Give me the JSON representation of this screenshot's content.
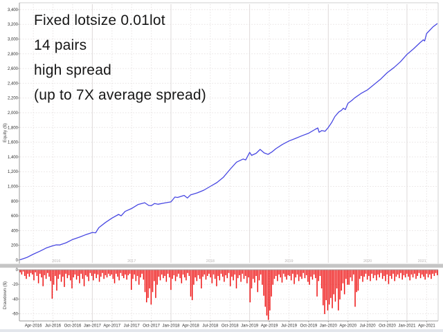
{
  "annotation": {
    "lines": [
      "Fixed lotsize 0.01lot",
      "14 pairs",
      "high spread",
      "(up to 7X average spread)"
    ]
  },
  "chart_data": {
    "type": "line",
    "title": "",
    "equity": {
      "axis_label": "Equity ($)",
      "y_tick_labels": [
        "0",
        "200",
        "400",
        "600",
        "800",
        "1,000",
        "1,200",
        "1,400",
        "1,600",
        "1,800",
        "2,000",
        "2,200",
        "2,400",
        "2,600",
        "2,800",
        "3,000",
        "3,200",
        "3,400"
      ],
      "y_tick_values": [
        0,
        200,
        400,
        600,
        800,
        1000,
        1200,
        1400,
        1600,
        1800,
        2000,
        2200,
        2400,
        2600,
        2800,
        3000,
        3200,
        3400
      ],
      "ylim": [
        0,
        3400
      ],
      "points": [
        [
          0,
          5
        ],
        [
          1,
          35
        ],
        [
          2,
          80
        ],
        [
          3,
          120
        ],
        [
          4,
          165
        ],
        [
          5,
          195
        ],
        [
          5.5,
          207
        ],
        [
          6,
          205
        ],
        [
          7,
          235
        ],
        [
          8,
          280
        ],
        [
          9,
          310
        ],
        [
          10,
          345
        ],
        [
          11,
          375
        ],
        [
          11.5,
          370
        ],
        [
          12,
          440
        ],
        [
          13,
          510
        ],
        [
          14,
          570
        ],
        [
          15,
          620
        ],
        [
          15.4,
          600
        ],
        [
          16,
          660
        ],
        [
          17,
          700
        ],
        [
          18,
          755
        ],
        [
          19,
          778
        ],
        [
          19.6,
          742
        ],
        [
          20,
          738
        ],
        [
          20.5,
          768
        ],
        [
          21,
          758
        ],
        [
          22,
          775
        ],
        [
          23,
          790
        ],
        [
          23.6,
          855
        ],
        [
          24,
          850
        ],
        [
          25,
          878
        ],
        [
          25.5,
          842
        ],
        [
          26,
          885
        ],
        [
          27,
          912
        ],
        [
          28,
          948
        ],
        [
          29,
          1000
        ],
        [
          30,
          1052
        ],
        [
          31,
          1125
        ],
        [
          32,
          1230
        ],
        [
          33,
          1330
        ],
        [
          34,
          1372
        ],
        [
          34.4,
          1360
        ],
        [
          35,
          1462
        ],
        [
          35.3,
          1422
        ],
        [
          36,
          1450
        ],
        [
          36.6,
          1502
        ],
        [
          37.2,
          1455
        ],
        [
          37.8,
          1435
        ],
        [
          38.4,
          1468
        ],
        [
          39,
          1512
        ],
        [
          40,
          1570
        ],
        [
          41,
          1617
        ],
        [
          42,
          1652
        ],
        [
          43,
          1688
        ],
        [
          44,
          1722
        ],
        [
          45,
          1775
        ],
        [
          45.4,
          1793
        ],
        [
          45.6,
          1735
        ],
        [
          46,
          1758
        ],
        [
          46.5,
          1748
        ],
        [
          47,
          1800
        ],
        [
          47.5,
          1865
        ],
        [
          48,
          1948
        ],
        [
          48.6,
          2010
        ],
        [
          49,
          2032
        ],
        [
          49.3,
          2062
        ],
        [
          49.6,
          2042
        ],
        [
          50,
          2128
        ],
        [
          50.6,
          2168
        ],
        [
          51,
          2200
        ],
        [
          52,
          2262
        ],
        [
          53,
          2312
        ],
        [
          54,
          2385
        ],
        [
          55,
          2458
        ],
        [
          56,
          2545
        ],
        [
          57,
          2612
        ],
        [
          58,
          2692
        ],
        [
          59,
          2792
        ],
        [
          60,
          2868
        ],
        [
          61,
          2952
        ],
        [
          61.5,
          2990
        ],
        [
          61.7,
          2975
        ],
        [
          62,
          3075
        ],
        [
          63,
          3168
        ],
        [
          63.6,
          3208
        ]
      ]
    },
    "drawdown": {
      "axis_label": "Drawdown ($)",
      "y_tick_labels": [
        "0",
        "-20",
        "-40",
        "-60"
      ],
      "y_tick_values": [
        0,
        -20,
        -40,
        -60
      ],
      "weekly_depths": [
        3,
        6,
        2,
        8,
        12,
        5,
        9,
        4,
        6,
        14,
        3,
        8,
        18,
        5,
        10,
        22,
        7,
        12,
        4,
        9,
        15,
        39,
        20,
        8,
        28,
        12,
        6,
        16,
        9,
        23,
        5,
        11,
        7,
        14,
        25,
        10,
        6,
        13,
        8,
        18,
        5,
        12,
        22,
        7,
        9,
        15,
        4,
        8,
        14,
        5,
        11,
        6,
        16,
        9,
        4,
        12,
        7,
        10,
        5,
        8,
        6,
        12,
        18,
        5,
        9,
        14,
        4,
        8,
        11,
        6,
        13,
        7,
        5,
        27,
        12,
        6,
        15,
        8,
        20,
        10,
        5,
        13,
        30,
        44,
        38,
        25,
        47,
        30,
        15,
        38,
        20,
        9,
        14,
        6,
        11,
        8,
        16,
        5,
        10,
        27,
        12,
        7,
        15,
        9,
        5,
        11,
        18,
        6,
        10,
        14,
        4,
        8,
        36,
        41,
        20,
        10,
        15,
        7,
        12,
        25,
        9,
        6,
        13,
        8,
        5,
        10,
        18,
        6,
        12,
        22,
        8,
        14,
        5,
        9,
        16,
        7,
        11,
        4,
        22,
        9,
        14,
        6,
        25,
        11,
        7,
        16,
        5,
        12,
        8,
        18,
        10,
        44,
        25,
        12,
        17,
        8,
        30,
        14,
        6,
        20,
        35,
        50,
        62,
        68,
        55,
        36,
        20,
        12,
        8,
        15,
        6,
        10,
        17,
        5,
        9,
        13,
        7,
        8,
        14,
        5,
        19,
        10,
        6,
        15,
        9,
        12,
        4,
        11,
        7,
        16,
        20,
        9,
        13,
        6,
        11,
        36,
        15,
        8,
        25,
        48,
        60,
        41,
        55,
        47,
        38,
        52,
        33,
        43,
        25,
        55,
        40,
        28,
        18,
        33,
        12,
        20,
        20,
        10,
        15,
        6,
        50,
        30,
        28,
        12,
        8,
        16,
        9,
        5,
        13,
        8,
        15,
        5,
        11,
        7,
        14,
        6,
        10,
        4,
        12,
        8,
        15,
        6,
        19,
        8,
        12,
        5,
        15,
        9,
        6,
        11,
        4,
        13,
        7,
        10,
        5,
        9,
        14,
        6,
        10,
        5,
        12,
        8,
        4,
        11,
        6,
        9,
        13,
        5,
        10,
        6,
        12,
        5,
        8,
        4,
        7
      ]
    },
    "x_axis": {
      "tick_labels": [
        "Apr-2016",
        "Jul-2016",
        "Oct-2016",
        "Jan-2017",
        "Apr-2017",
        "Jul-2017",
        "Oct-2017",
        "Jan-2018",
        "Apr-2018",
        "Jul-2018",
        "Oct-2018",
        "Jan-2019",
        "Apr-2019",
        "Jul-2019",
        "Oct-2019",
        "Jan-2020",
        "Apr-2020",
        "Jul-2020",
        "Oct-2020",
        "Jan-2021",
        "Apr-2021"
      ],
      "year_labels": [
        "2016",
        "2017",
        "2018",
        "2019",
        "2020",
        "2021"
      ]
    },
    "colors": {
      "equity_line": "#4747e2",
      "drawdown_bars": "#ee1212",
      "grid_dotted": "#e7e2e2",
      "grid_year": "#ded9d9",
      "axis_line": "#999999",
      "frame_light": "#cfcfcf",
      "divider": "#c5c5c5",
      "tick_text": "#2b2b2b",
      "year_text": "#b8b4b4",
      "axis_title_text": "#4a4a4a"
    }
  }
}
